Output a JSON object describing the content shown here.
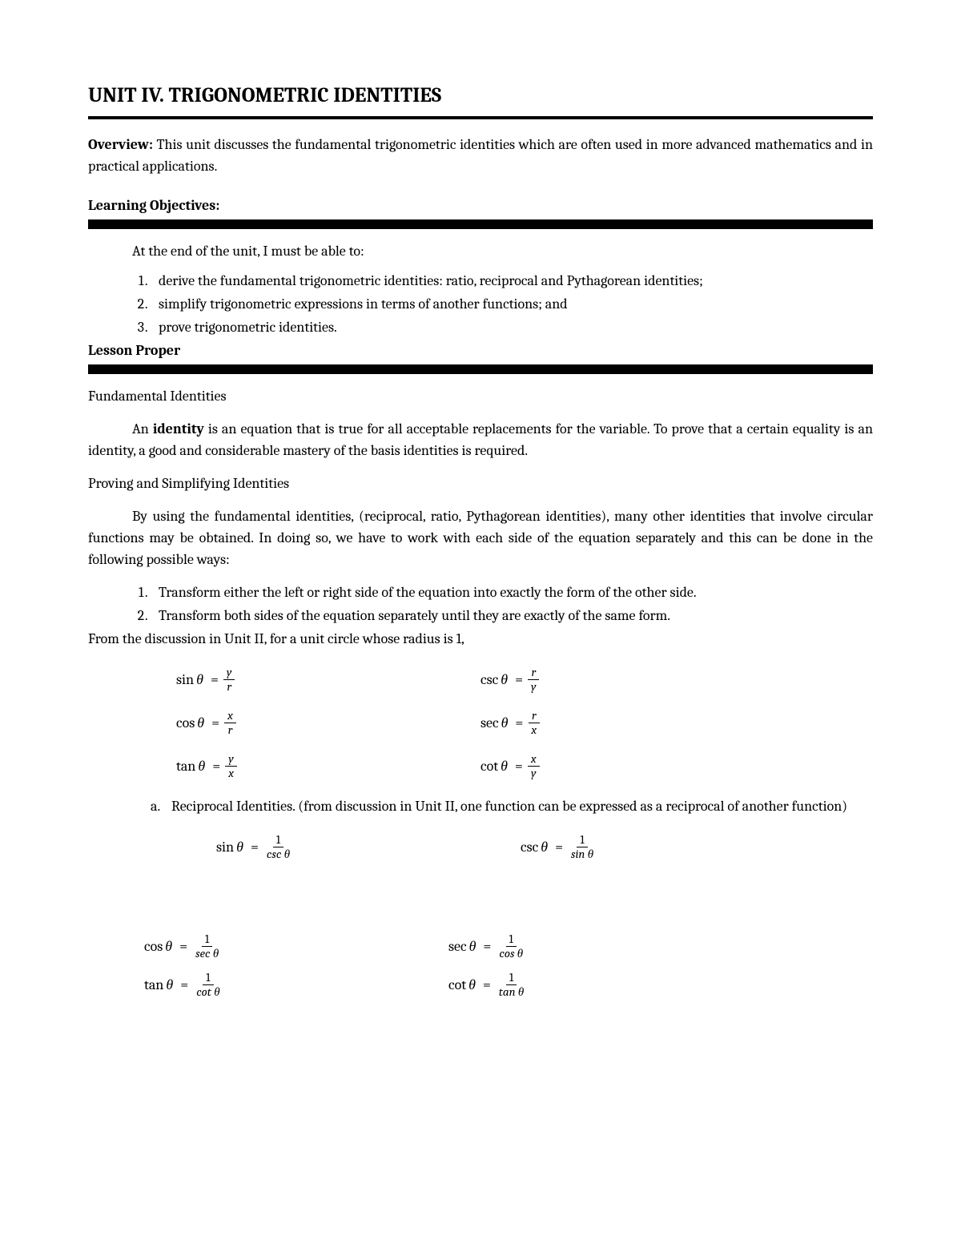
{
  "title": "UNIT IV.  TRIGONOMETRIC IDENTITIES",
  "overview_label": "Overview:",
  "overview_text": " This unit discusses the fundamental trigonometric identities which are often used in more advanced mathematics and in practical applications.",
  "learning_objectives_heading": "Learning Objectives:",
  "objectives_intro": "At the end of the unit, I must be able to:",
  "objectives": [
    "derive the fundamental trigonometric identities: ratio, reciprocal and Pythagorean identities;",
    "simplify trigonometric expressions in terms of another functions; and",
    "prove trigonometric identities."
  ],
  "lesson_proper_heading": "Lesson Proper",
  "fundamental_heading": "Fundamental Identities",
  "identity_para_pre": "An ",
  "identity_bold": "identity",
  "identity_para_post": " is an equation that is true for all acceptable replacements for the variable. To prove that a certain equality is an identity, a good and considerable mastery of the basis identities is required.",
  "proving_heading": "Proving and Simplifying Identities",
  "proving_para": "By using the fundamental identities, (reciprocal, ratio, Pythagorean identities), many other identities that involve circular functions may be obtained. In doing so, we have to work with each side of the equation separately and this can be done in the following possible ways:",
  "steps": [
    "Transform either the left or right side of the equation into exactly the form of the other side.",
    "Transform both sides of the equation separately until they are exactly of the same form."
  ],
  "unit_circle_line": "From the discussion in Unit II, for a unit circle whose radius is 1,",
  "basic_defs": [
    {
      "fn": "sin",
      "num": "y",
      "den": "r"
    },
    {
      "fn": "csc",
      "num": "r",
      "den": "y"
    },
    {
      "fn": "cos",
      "num": "x",
      "den": "r"
    },
    {
      "fn": "sec",
      "num": "r",
      "den": "x"
    },
    {
      "fn": "tan",
      "num": "y",
      "den": "x"
    },
    {
      "fn": "cot",
      "num": "x",
      "den": "y"
    }
  ],
  "sub_a_mark": "a.",
  "sub_a_text": "Reciprocal Identities. (from discussion in Unit II, one function can be expressed as a reciprocal of another function)",
  "recip_ids_top": [
    {
      "fn": "sin",
      "num": "1",
      "den_fn": "csc",
      "den_has_theta": true
    },
    {
      "fn": "csc",
      "num": "1",
      "den_fn": "sin",
      "den_has_theta": true
    }
  ],
  "recip_ids_bottom": [
    {
      "fn": "cos",
      "num": "1",
      "den_fn": "sec",
      "den_has_theta": true
    },
    {
      "fn": "sec",
      "num": "1",
      "den_fn": "cos",
      "den_has_theta": true
    },
    {
      "fn": "tan",
      "num": "1",
      "den_fn": "cot",
      "den_has_theta": true
    },
    {
      "fn": "cot",
      "num": "1",
      "den_fn": "tan",
      "den_has_theta": true
    }
  ],
  "theta": "θ",
  "colors": {
    "text": "#000000",
    "background": "#ffffff",
    "rule": "#000000"
  }
}
